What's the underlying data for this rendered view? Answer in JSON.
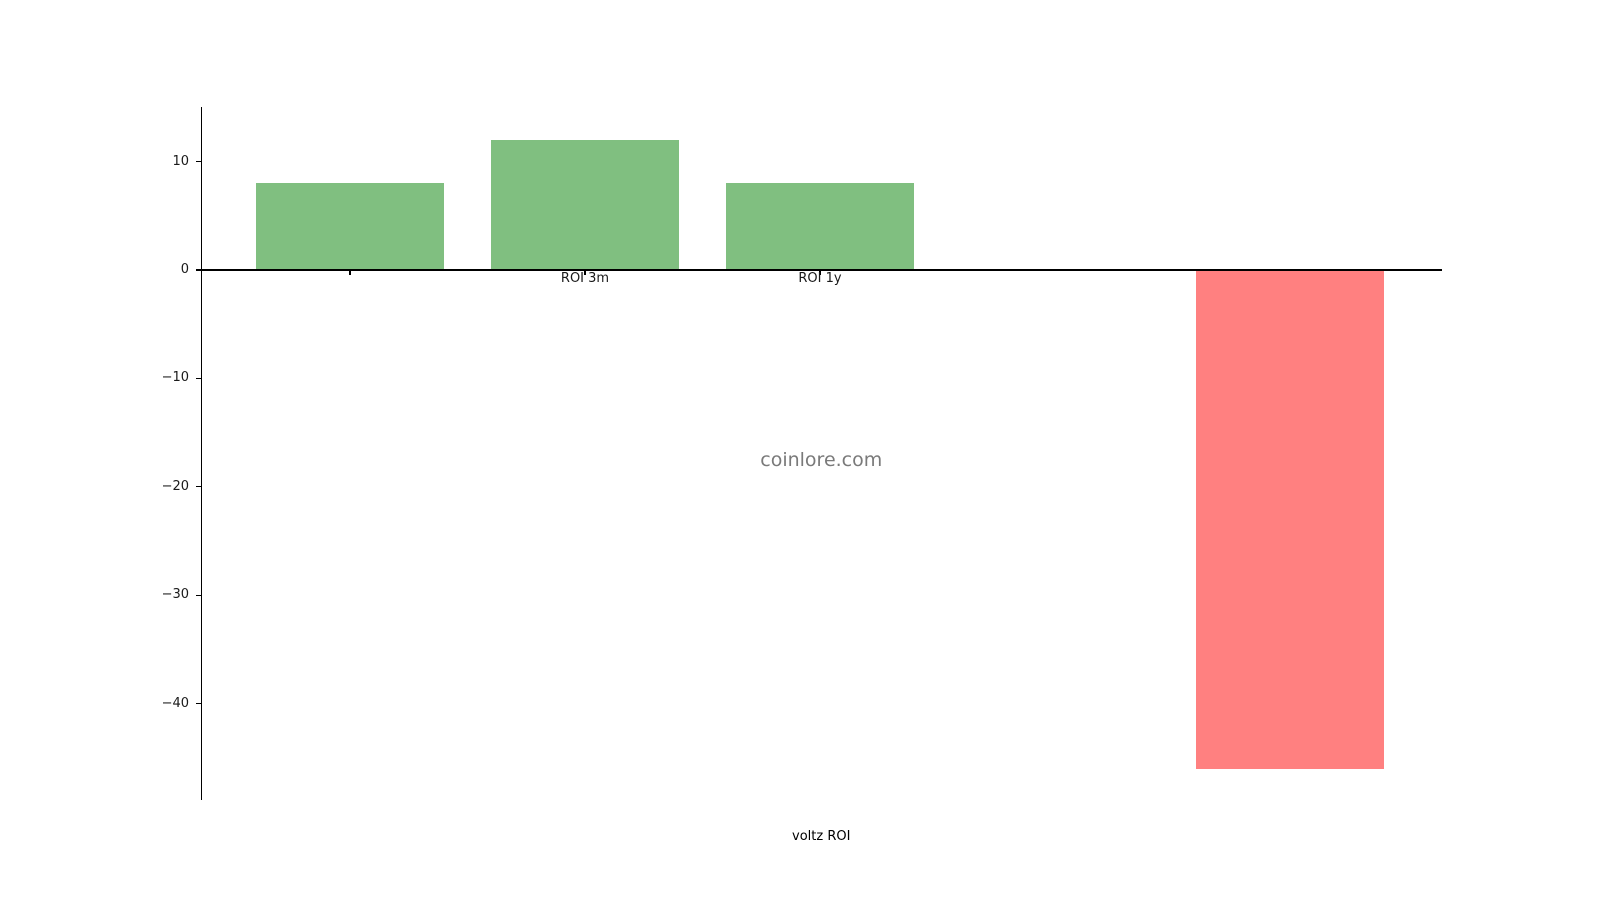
{
  "watermark": {
    "text": "coinlore.com",
    "color": "#7a7a7a"
  },
  "chart_data": {
    "type": "bar",
    "title": "",
    "xlabel": "voltz ROI",
    "ylabel": "",
    "categories": [
      "",
      "ROI 3m",
      "ROI 1y",
      ""
    ],
    "values": [
      8,
      12,
      8,
      -46
    ],
    "bar_colors": [
      "#80BF80",
      "#80BF80",
      "#80BF80",
      "#FF8080"
    ],
    "x_slots": [
      0,
      1,
      2,
      4
    ],
    "show_tick": [
      true,
      true,
      true,
      false
    ],
    "yticks": [
      10,
      0,
      -10,
      -20,
      -30,
      -40
    ],
    "ytick_labels": [
      "10",
      "0",
      "−10",
      "−20",
      "−30",
      "−40"
    ],
    "ylim": [
      -49,
      15
    ],
    "grid": false,
    "legend_position": "none",
    "colors": {
      "positive": "#80BF80",
      "negative": "#FF8080",
      "axis": "#000000"
    }
  }
}
